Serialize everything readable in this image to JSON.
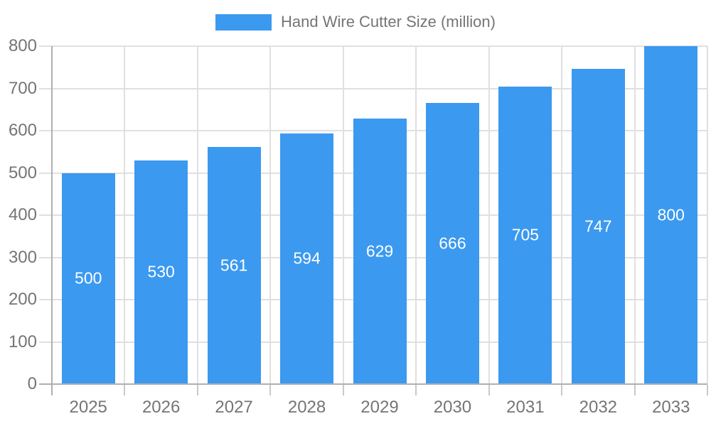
{
  "legend": {
    "label": "Hand Wire Cutter Size (million)"
  },
  "chart_data": {
    "type": "bar",
    "title": "Hand Wire Cutter Size (million)",
    "categories": [
      "2025",
      "2026",
      "2027",
      "2028",
      "2029",
      "2030",
      "2031",
      "2032",
      "2033"
    ],
    "values": [
      500,
      530,
      561,
      594,
      629,
      666,
      705,
      747,
      800
    ],
    "xlabel": "",
    "ylabel": "",
    "ylim": [
      0,
      800
    ],
    "yticks": [
      0,
      100,
      200,
      300,
      400,
      500,
      600,
      700,
      800
    ],
    "grid": true,
    "legend_position": "top-center",
    "bar_labels_inside": true,
    "colors": {
      "bar": "#3B99F0",
      "bar_label": "#ffffff",
      "axis": "#b0b0b0",
      "gridline": "#e0e0e0",
      "tick": "#c9c9c9",
      "text": "#757575",
      "background": "#ffffff"
    }
  }
}
